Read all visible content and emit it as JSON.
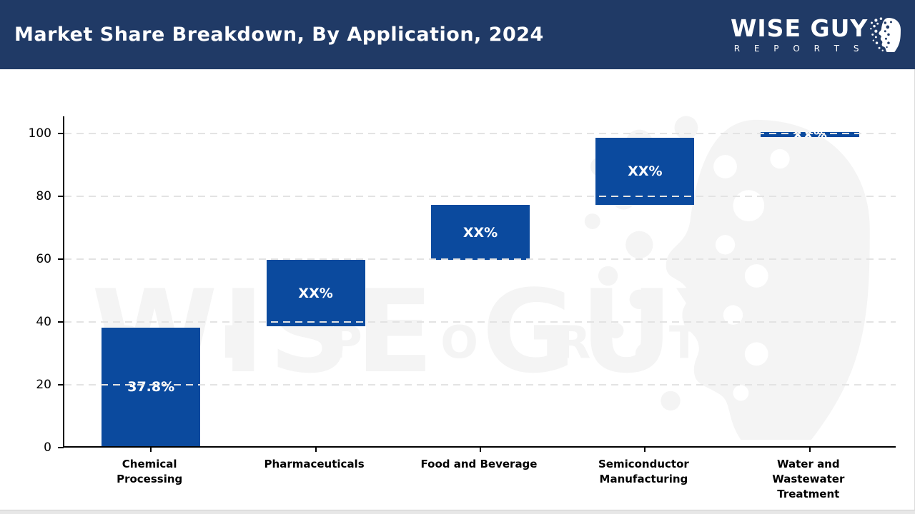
{
  "header": {
    "title": "Market Share Breakdown, By Application, 2024",
    "bg_color": "#203a66",
    "logo": {
      "wordmark": "WISE GUY",
      "sub": "R E P O R T S"
    }
  },
  "watermark": {
    "wordmark": "WISE GUY",
    "sub": "R E P O R T S"
  },
  "chart_data": {
    "type": "bar",
    "subtype": "floating-waterfall",
    "title": "Market Share Breakdown, By Application, 2024",
    "categories": [
      "Chemical\nProcessing",
      "Pharmaceuticals",
      "Food and Beverage",
      "Semiconductor\nManufacturing",
      "Water and\nWastewater\nTreatment"
    ],
    "segments": [
      {
        "category": "Chemical Processing",
        "start": 0,
        "end": 37.8,
        "label": "37.8%"
      },
      {
        "category": "Pharmaceuticals",
        "start": 38.2,
        "end": 59.3,
        "label": "XX%"
      },
      {
        "category": "Food and Beverage",
        "start": 59.3,
        "end": 76.8,
        "label": "XX%"
      },
      {
        "category": "Semiconductor Manufacturing",
        "start": 76.8,
        "end": 98.2,
        "label": "XX%"
      },
      {
        "category": "Water and Wastewater Treatment",
        "start": 98.4,
        "end": 100,
        "label": "XX%"
      }
    ],
    "ylim": [
      0,
      100
    ],
    "yticks": [
      0,
      20,
      40,
      60,
      80,
      100
    ],
    "grid": {
      "horizontal": true,
      "style": "dashed",
      "color": "#e3e3e3"
    },
    "bar_color": "#0b4a9e",
    "bar_label_color": "#ffffff",
    "axis_color": "#000000",
    "legend": "none"
  }
}
